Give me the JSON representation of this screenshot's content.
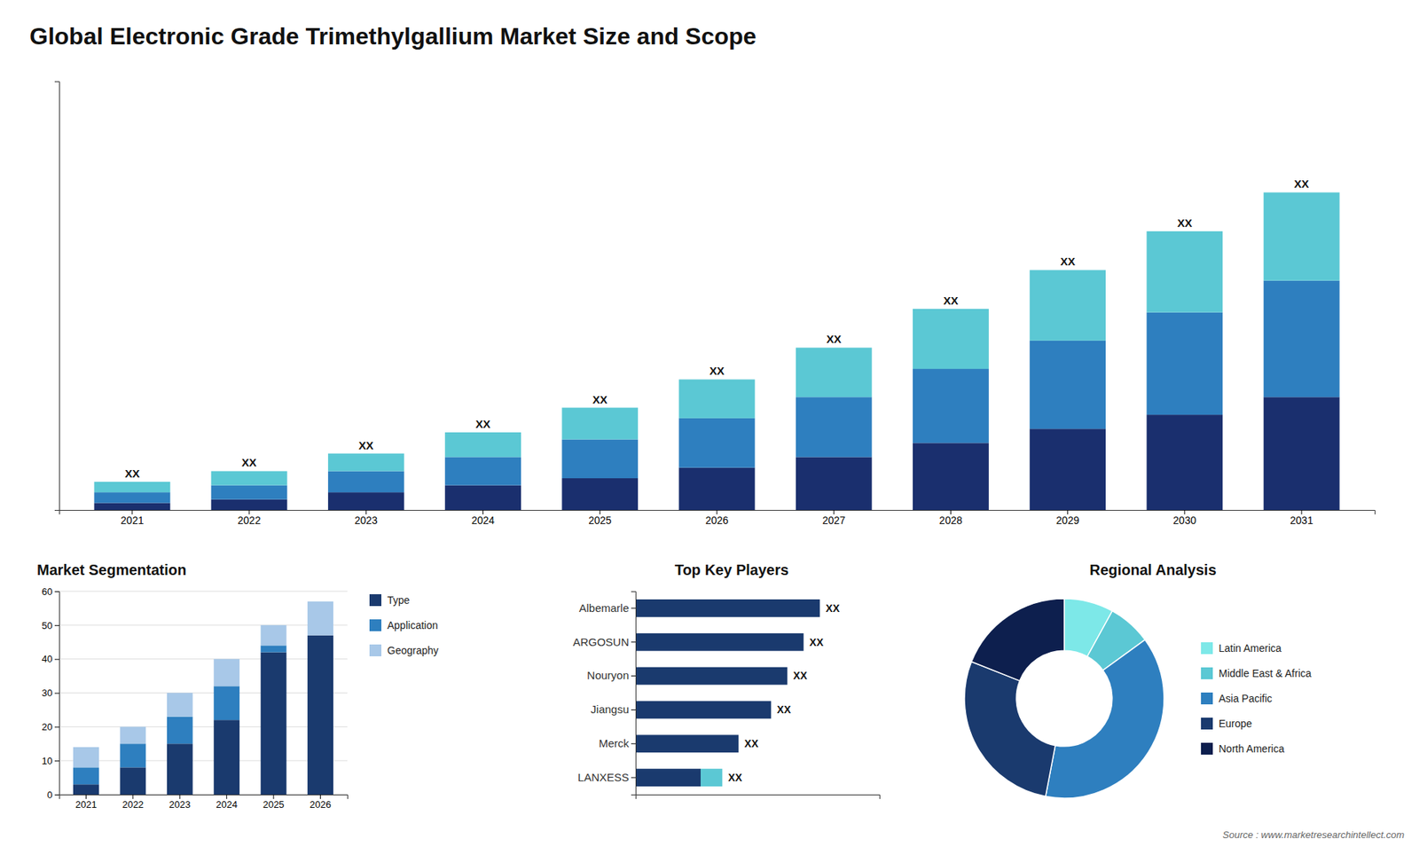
{
  "chart_data": [
    {
      "type": "bar",
      "title": "Global Electronic Grade Trimethylgallium Market Size and Scope",
      "stacked": true,
      "categories": [
        "2021",
        "2022",
        "2023",
        "2024",
        "2025",
        "2026",
        "2027",
        "2028",
        "2029",
        "2030",
        "2031"
      ],
      "series": [
        {
          "color": "#1a2f6e",
          "values": [
            2,
            3,
            5,
            7,
            9,
            12,
            15,
            19,
            23,
            27,
            32
          ]
        },
        {
          "color": "#2e7fbf",
          "values": [
            3,
            4,
            6,
            8,
            11,
            14,
            17,
            21,
            25,
            29,
            33
          ]
        },
        {
          "color": "#5bc8d4",
          "values": [
            3,
            4,
            5,
            7,
            9,
            11,
            14,
            17,
            20,
            23,
            25
          ]
        }
      ],
      "ylim": [
        0,
        121.5
      ],
      "tick_labels": "x",
      "annotations": [
        "XX",
        "XX",
        "XX",
        "XX",
        "XX",
        "XX",
        "XX",
        "XX",
        "XX",
        "XX",
        "XX"
      ]
    },
    {
      "type": "bar",
      "title": "Market Segmentation",
      "stacked": true,
      "categories": [
        "2021",
        "2022",
        "2023",
        "2024",
        "2025",
        "2026"
      ],
      "series": [
        {
          "name": "Type",
          "color": "#1a3a6e",
          "values": [
            3,
            8,
            15,
            22,
            42,
            47
          ]
        },
        {
          "name": "Application",
          "color": "#2e7fbf",
          "values": [
            5,
            7,
            8,
            10,
            2,
            0
          ]
        },
        {
          "name": "Geography",
          "color": "#a8c8e8",
          "values": [
            6,
            5,
            7,
            8,
            6,
            10
          ]
        }
      ],
      "ylim": [
        0,
        60
      ],
      "yticks": [
        0,
        10,
        20,
        30,
        40,
        50,
        60
      ],
      "grid": true,
      "legend": "right"
    },
    {
      "type": "bar",
      "title": "Top Key Players",
      "orientation": "horizontal",
      "stacked": true,
      "categories": [
        "Albemarle",
        "ARGOSUN",
        "Nouryon",
        "Jiangsu",
        "Merck",
        "LANXESS"
      ],
      "series": [
        {
          "color": "#1a3a6e",
          "values": [
            68,
            62,
            56,
            50,
            38,
            24
          ]
        },
        {
          "color": "#5bc8d4",
          "values": [
            0,
            0,
            0,
            0,
            0,
            8
          ]
        }
      ],
      "xlim": [
        0,
        90
      ],
      "tick_labels": "y",
      "annotations": [
        "XX",
        "XX",
        "XX",
        "XX",
        "XX",
        "XX"
      ]
    },
    {
      "type": "pie",
      "title": "Regional Analysis",
      "categories": [
        "Latin America",
        "Middle East & Africa",
        "Asia Pacific",
        "Europe",
        "North America"
      ],
      "values": [
        8,
        7,
        38,
        28,
        19
      ],
      "colors": [
        "#7de8e8",
        "#5bc8d4",
        "#2e7fbf",
        "#1a3a6e",
        "#0d1f4e"
      ],
      "legend": "right",
      "annotations": [
        "Source : www.marketresearchintellect.com"
      ]
    }
  ]
}
